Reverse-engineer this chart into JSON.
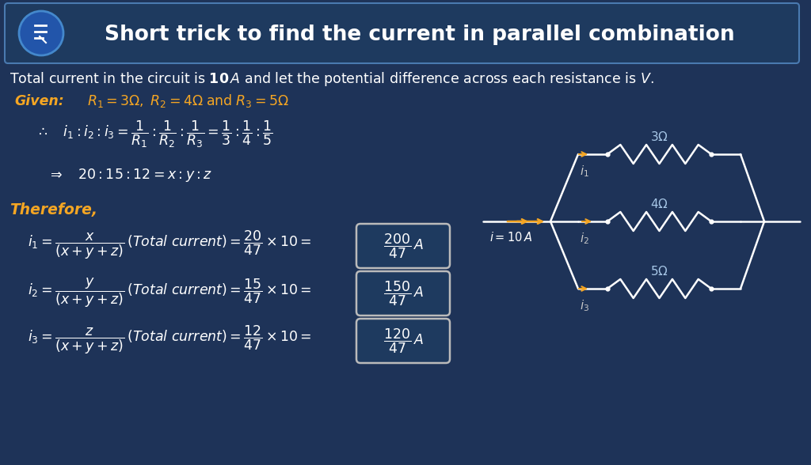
{
  "bg_color": "#1e3358",
  "header_bg": "#1e3a5f",
  "header_text": "Short trick to find the current in parallel combination",
  "header_text_color": "#ffffff",
  "body_text_color": "#ffffff",
  "given_color": "#f5a623",
  "therefore_color": "#f5a623",
  "box_bg": "#1e3a5f",
  "box_edge": "#aaaaaa",
  "circuit_color": "#ffffff",
  "arrow_color": "#f5a623",
  "resistor_label_color": "#a8c8e8",
  "current_label_color": "#c8c8c8"
}
